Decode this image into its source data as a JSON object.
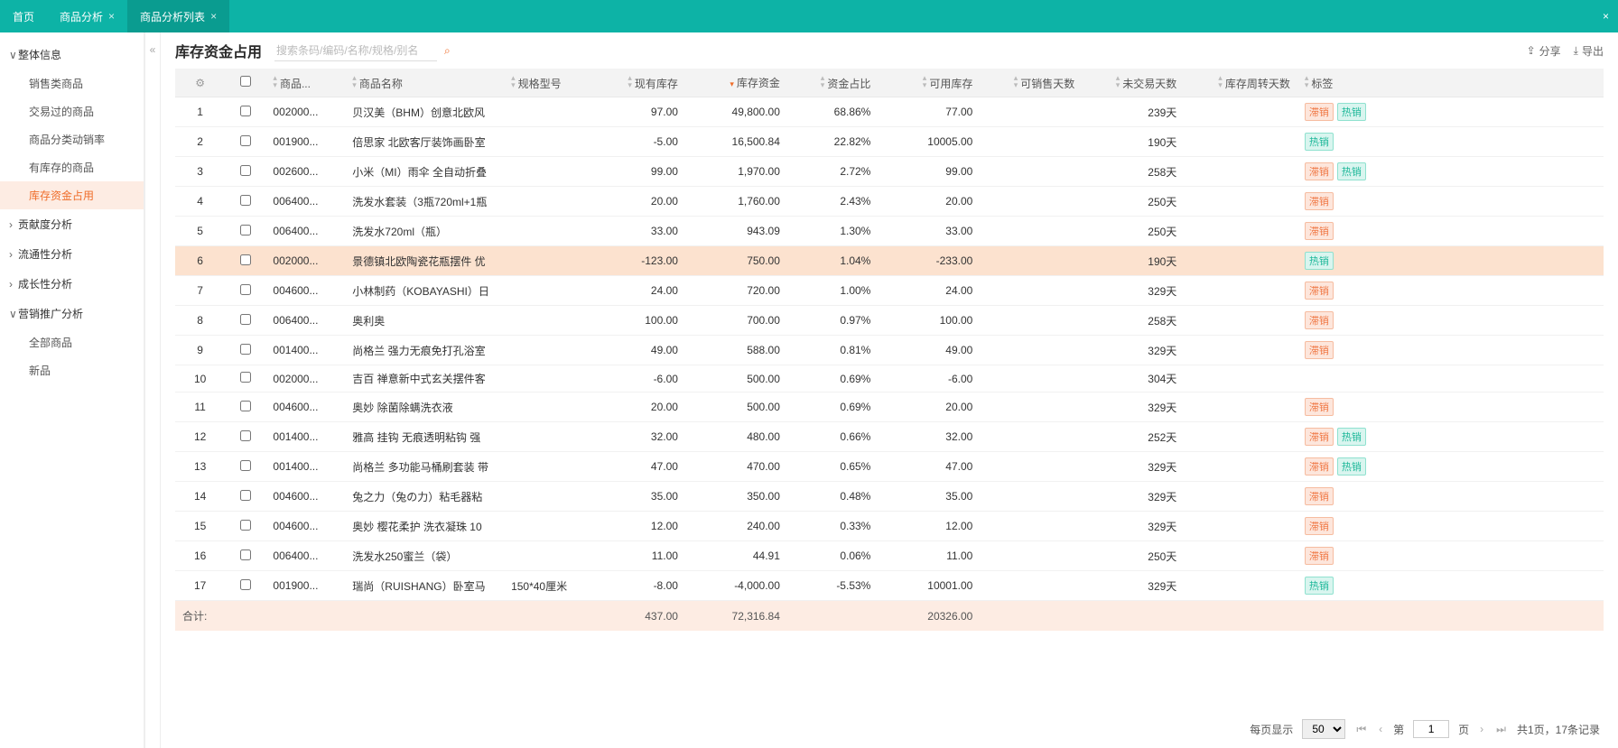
{
  "tabs": [
    {
      "label": "首页",
      "closable": false,
      "active": false
    },
    {
      "label": "商品分析",
      "closable": true,
      "active": false
    },
    {
      "label": "商品分析列表",
      "closable": true,
      "active": true
    }
  ],
  "sidebar": {
    "g_overall": "整体信息",
    "overall_items": [
      {
        "label": "销售类商品"
      },
      {
        "label": "交易过的商品"
      },
      {
        "label": "商品分类动销率"
      },
      {
        "label": "有库存的商品"
      },
      {
        "label": "库存资金占用",
        "active": true
      }
    ],
    "g_contrib": "贡献度分析",
    "g_flow": "流通性分析",
    "g_growth": "成长性分析",
    "g_marketing": "营销推广分析",
    "marketing_items": [
      {
        "label": "全部商品"
      },
      {
        "label": "新品"
      }
    ]
  },
  "collapse_glyph": "«",
  "page_title": "库存资金占用",
  "search_placeholder": "搜索条码/编码/名称/规格/别名",
  "toolbar": {
    "share": "分享",
    "export": "导出"
  },
  "columns": {
    "code": "商品...",
    "name": "商品名称",
    "spec": "规格型号",
    "stock": "现有库存",
    "fund": "库存资金",
    "pct": "资金占比",
    "avail": "可用库存",
    "saleDays": "可销售天数",
    "noSaleDays": "未交易天数",
    "turnDays": "库存周转天数",
    "tags": "标签"
  },
  "tag_labels": {
    "slow": "滞销",
    "hot": "热销"
  },
  "rows": [
    {
      "idx": 1,
      "code": "002000...",
      "name": "贝汉美（BHM）创意北欧风",
      "spec": "",
      "stock": "97.00",
      "fund": "49,800.00",
      "pct": "68.86%",
      "avail": "77.00",
      "saleDays": "",
      "noSale": "239天",
      "turn": "",
      "tags": [
        "slow",
        "hot"
      ]
    },
    {
      "idx": 2,
      "code": "001900...",
      "name": "倍思家 北欧客厅装饰画卧室",
      "spec": "",
      "stock": "-5.00",
      "fund": "16,500.84",
      "pct": "22.82%",
      "avail": "10005.00",
      "saleDays": "",
      "noSale": "190天",
      "turn": "",
      "tags": [
        "hot"
      ]
    },
    {
      "idx": 3,
      "code": "002600...",
      "name": "小米（MI）雨伞 全自动折叠",
      "spec": "",
      "stock": "99.00",
      "fund": "1,970.00",
      "pct": "2.72%",
      "avail": "99.00",
      "saleDays": "",
      "noSale": "258天",
      "turn": "",
      "tags": [
        "slow",
        "hot"
      ]
    },
    {
      "idx": 4,
      "code": "006400...",
      "name": "洗发水套装（3瓶720ml+1瓶",
      "spec": "",
      "stock": "20.00",
      "fund": "1,760.00",
      "pct": "2.43%",
      "avail": "20.00",
      "saleDays": "",
      "noSale": "250天",
      "turn": "",
      "tags": [
        "slow"
      ]
    },
    {
      "idx": 5,
      "code": "006400...",
      "name": "洗发水720ml（瓶）",
      "spec": "",
      "stock": "33.00",
      "fund": "943.09",
      "pct": "1.30%",
      "avail": "33.00",
      "saleDays": "",
      "noSale": "250天",
      "turn": "",
      "tags": [
        "slow"
      ]
    },
    {
      "idx": 6,
      "code": "002000...",
      "name": "景德镇北欧陶瓷花瓶摆件 优",
      "spec": "",
      "stock": "-123.00",
      "fund": "750.00",
      "pct": "1.04%",
      "avail": "-233.00",
      "saleDays": "",
      "noSale": "190天",
      "turn": "",
      "tags": [
        "hot"
      ],
      "hl": true
    },
    {
      "idx": 7,
      "code": "004600...",
      "name": "小林制药（KOBAYASHI）日",
      "spec": "",
      "stock": "24.00",
      "fund": "720.00",
      "pct": "1.00%",
      "avail": "24.00",
      "saleDays": "",
      "noSale": "329天",
      "turn": "",
      "tags": [
        "slow"
      ]
    },
    {
      "idx": 8,
      "code": "006400...",
      "name": "奥利奥",
      "spec": "",
      "stock": "100.00",
      "fund": "700.00",
      "pct": "0.97%",
      "avail": "100.00",
      "saleDays": "",
      "noSale": "258天",
      "turn": "",
      "tags": [
        "slow"
      ]
    },
    {
      "idx": 9,
      "code": "001400...",
      "name": "尚格兰 强力无痕免打孔浴室",
      "spec": "",
      "stock": "49.00",
      "fund": "588.00",
      "pct": "0.81%",
      "avail": "49.00",
      "saleDays": "",
      "noSale": "329天",
      "turn": "",
      "tags": [
        "slow"
      ]
    },
    {
      "idx": 10,
      "code": "002000...",
      "name": "吉百 禅意新中式玄关摆件客",
      "spec": "",
      "stock": "-6.00",
      "fund": "500.00",
      "pct": "0.69%",
      "avail": "-6.00",
      "saleDays": "",
      "noSale": "304天",
      "turn": "",
      "tags": []
    },
    {
      "idx": 11,
      "code": "004600...",
      "name": "奥妙 除菌除螨洗衣液",
      "spec": "",
      "stock": "20.00",
      "fund": "500.00",
      "pct": "0.69%",
      "avail": "20.00",
      "saleDays": "",
      "noSale": "329天",
      "turn": "",
      "tags": [
        "slow"
      ]
    },
    {
      "idx": 12,
      "code": "001400...",
      "name": "雅高 挂钩 无痕透明粘钩 强",
      "spec": "",
      "stock": "32.00",
      "fund": "480.00",
      "pct": "0.66%",
      "avail": "32.00",
      "saleDays": "",
      "noSale": "252天",
      "turn": "",
      "tags": [
        "slow",
        "hot"
      ]
    },
    {
      "idx": 13,
      "code": "001400...",
      "name": "尚格兰 多功能马桶刷套装 带",
      "spec": "",
      "stock": "47.00",
      "fund": "470.00",
      "pct": "0.65%",
      "avail": "47.00",
      "saleDays": "",
      "noSale": "329天",
      "turn": "",
      "tags": [
        "slow",
        "hot"
      ]
    },
    {
      "idx": 14,
      "code": "004600...",
      "name": "兔之力（兔の力）粘毛器粘",
      "spec": "",
      "stock": "35.00",
      "fund": "350.00",
      "pct": "0.48%",
      "avail": "35.00",
      "saleDays": "",
      "noSale": "329天",
      "turn": "",
      "tags": [
        "slow"
      ]
    },
    {
      "idx": 15,
      "code": "004600...",
      "name": "奥妙 樱花柔护 洗衣凝珠 10",
      "spec": "",
      "stock": "12.00",
      "fund": "240.00",
      "pct": "0.33%",
      "avail": "12.00",
      "saleDays": "",
      "noSale": "329天",
      "turn": "",
      "tags": [
        "slow"
      ]
    },
    {
      "idx": 16,
      "code": "006400...",
      "name": "洗发水250蜜兰（袋）",
      "spec": "",
      "stock": "11.00",
      "fund": "44.91",
      "pct": "0.06%",
      "avail": "11.00",
      "saleDays": "",
      "noSale": "250天",
      "turn": "",
      "tags": [
        "slow"
      ]
    },
    {
      "idx": 17,
      "code": "001900...",
      "name": "瑞尚（RUISHANG）卧室马",
      "spec": "150*40厘米",
      "stock": "-8.00",
      "fund": "-4,000.00",
      "pct": "-5.53%",
      "avail": "10001.00",
      "saleDays": "",
      "noSale": "329天",
      "turn": "",
      "tags": [
        "hot"
      ]
    }
  ],
  "totals": {
    "label": "合计:",
    "stock": "437.00",
    "fund": "72,316.84",
    "avail": "20326.00"
  },
  "pager": {
    "perPageLabel": "每页显示",
    "perPage": "50",
    "pagePrefix": "第",
    "page": "1",
    "pageSuffix": "页",
    "summary": "共1页，17条记录"
  }
}
